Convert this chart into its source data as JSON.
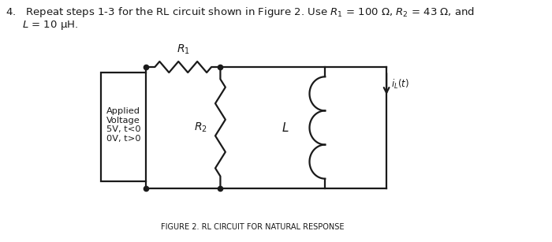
{
  "caption": "FIGURE 2. RL CIRCUIT FOR NATURAL RESPONSE",
  "bg_color": "#ffffff",
  "text_color": "#1a1a1a",
  "circuit_color": "#1a1a1a",
  "voltage_box_label": "Applied\nVoltage\n5V, t<0\n0V, t>0",
  "R1_label": "$R_1$",
  "R2_label": "$R_2$",
  "L_label": "$L$",
  "iL_label": "$i_L(t)$",
  "line1": "4.   Repeat steps 1-3 for the RL circuit shown in Figure 2. Use $R_1$ = 100 Ω, $R_2$ = 43 Ω, and",
  "line2": "     $L$ = 10 μH."
}
